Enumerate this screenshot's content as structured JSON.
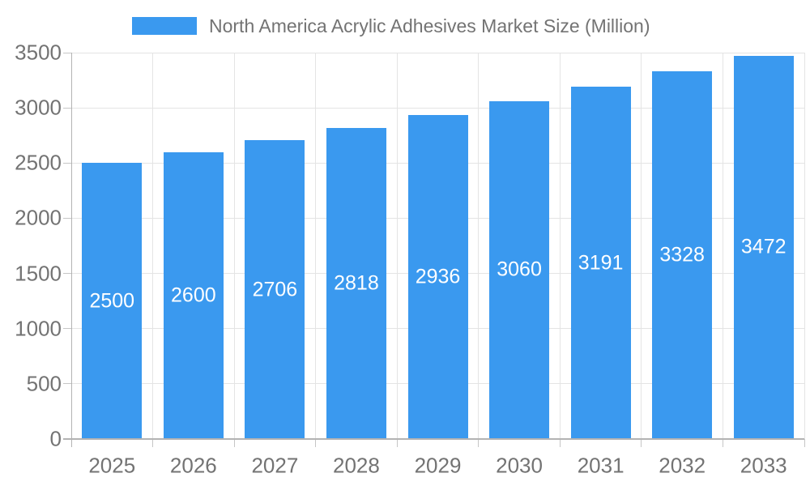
{
  "chart_data": {
    "type": "bar",
    "title": "North America Acrylic Adhesives Market Size (Million)",
    "categories": [
      "2025",
      "2026",
      "2027",
      "2028",
      "2029",
      "2030",
      "2031",
      "2032",
      "2033"
    ],
    "values": [
      2500,
      2600,
      2706,
      2818,
      2936,
      3060,
      3191,
      3328,
      3472
    ],
    "yticks": [
      0,
      500,
      1000,
      1500,
      2000,
      2500,
      3000,
      3500
    ],
    "ylim": [
      0,
      3500
    ],
    "xlabel": "",
    "ylabel": "",
    "grid": true,
    "legend_position": "top",
    "bar_color": "#3A99EF",
    "value_label_color": "#ffffff",
    "axis_text_color": "#737373",
    "grid_color": "#e4e4e4",
    "axis_line_color": "#b3b3b3",
    "tick_color": "#c6c6c6"
  }
}
